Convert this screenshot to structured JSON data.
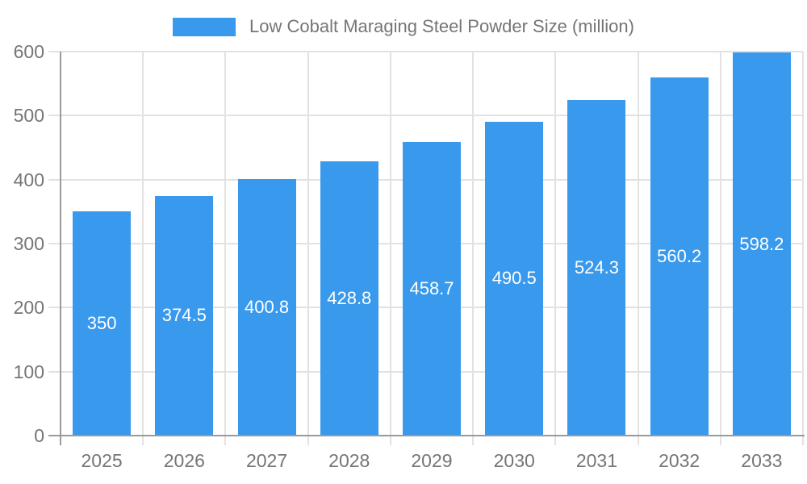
{
  "legend": {
    "label": "Low Cobalt Maraging Steel Powder Size (million)"
  },
  "colors": {
    "bar": "#3999EC",
    "grid": "#E2E2E2",
    "axis": "#9A9A9A",
    "tick_label": "#757575",
    "value_label": "#FFFFFF",
    "background": "#FFFFFF"
  },
  "chart_data": {
    "type": "bar",
    "title": "Low Cobalt Maraging Steel Powder Size (million)",
    "categories": [
      "2025",
      "2026",
      "2027",
      "2028",
      "2029",
      "2030",
      "2031",
      "2032",
      "2033"
    ],
    "values": [
      350,
      374.5,
      400.8,
      428.8,
      458.7,
      490.5,
      524.3,
      560.2,
      598.2
    ],
    "value_labels": [
      "350",
      "374.5",
      "400.8",
      "428.8",
      "458.7",
      "490.5",
      "524.3",
      "560.2",
      "598.2"
    ],
    "xlabel": "",
    "ylabel": "",
    "ylim": [
      0,
      600
    ],
    "yticks": [
      0,
      100,
      200,
      300,
      400,
      500,
      600
    ],
    "grid": true,
    "legend_position": "top",
    "value_label_position": "center-of-bar"
  }
}
